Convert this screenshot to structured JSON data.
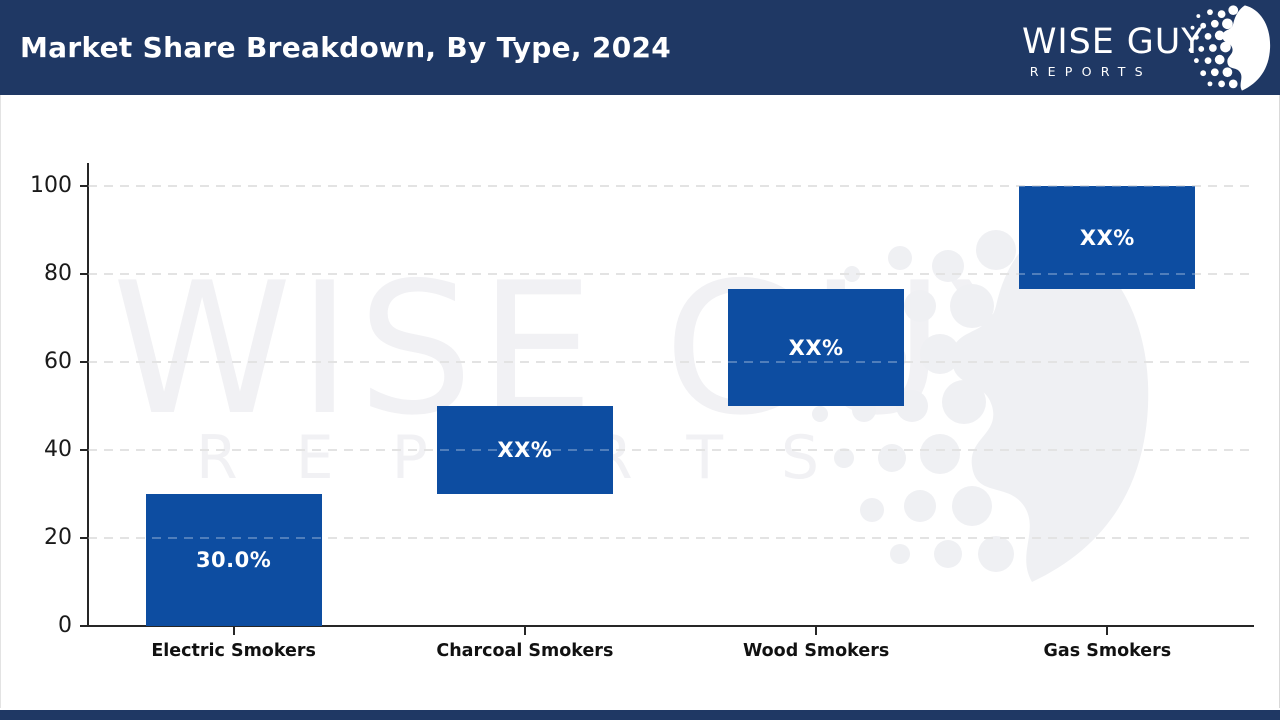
{
  "header": {
    "title": "Market Share Breakdown, By Type, 2024",
    "bg_color": "#1f3864",
    "logo": {
      "brand_top": "WISE GUY",
      "brand_bottom": "REPORTS"
    }
  },
  "watermark": {
    "line1": "WISE GUY",
    "line2": "REPORTS",
    "color": "#f1f1f4"
  },
  "footer": {
    "bg_color": "#1f3864"
  },
  "chart_data": {
    "type": "bar",
    "subtype": "floating-waterfall",
    "title": "Market Share Breakdown, By Type, 2024",
    "categories": [
      "Electric Smokers",
      "Charcoal Smokers",
      "Wood Smokers",
      "Gas Smokers"
    ],
    "bars": [
      {
        "category": "Electric Smokers",
        "start": 0,
        "end": 30,
        "label": "30.0%"
      },
      {
        "category": "Charcoal Smokers",
        "start": 30,
        "end": 50,
        "label": "XX%"
      },
      {
        "category": "Wood Smokers",
        "start": 50,
        "end": 76.5,
        "label": "XX%"
      },
      {
        "category": "Gas Smokers",
        "start": 76.5,
        "end": 100,
        "label": "XX%"
      }
    ],
    "ylim": [
      0,
      105
    ],
    "yticks": [
      0,
      20,
      40,
      60,
      80,
      100
    ],
    "xlabel": "",
    "ylabel": "",
    "grid": "horizontal-dashed, drawn over bars with transparency",
    "legend": "none",
    "bar_color": "#0d4da1",
    "bar_label_color": "#ffffff",
    "axis_color": "#262626",
    "grid_color": "#d8d8d8"
  }
}
